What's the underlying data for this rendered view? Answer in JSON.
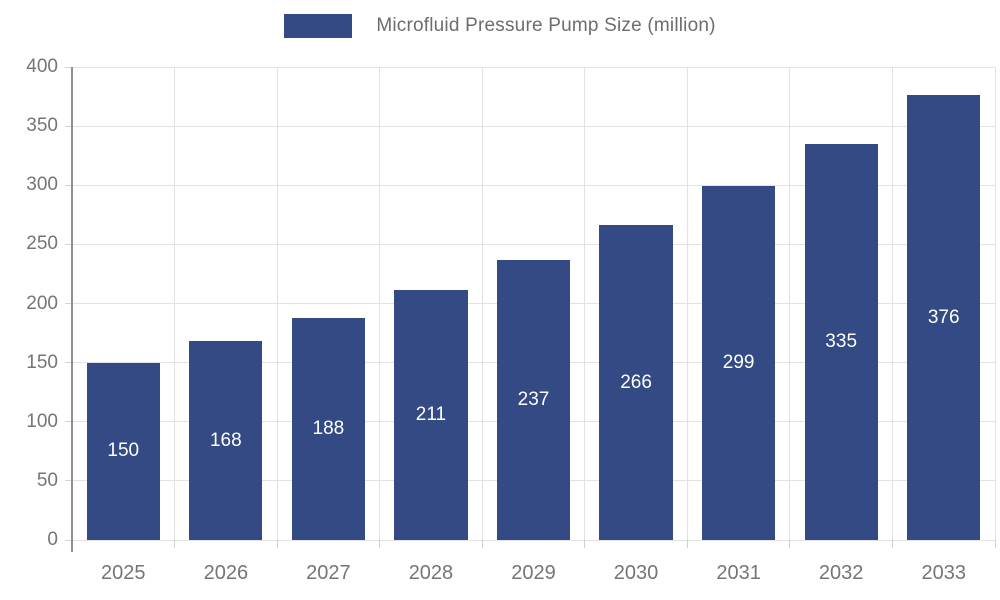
{
  "chart_data": {
    "type": "bar",
    "title": "Microfluid Pressure Pump Size (million)",
    "categories": [
      "2025",
      "2026",
      "2027",
      "2028",
      "2029",
      "2030",
      "2031",
      "2032",
      "2033"
    ],
    "values": [
      150,
      168,
      188,
      211,
      237,
      266,
      299,
      335,
      376
    ],
    "ylim": [
      0,
      400
    ],
    "yticks": [
      0,
      50,
      100,
      150,
      200,
      250,
      300,
      350,
      400
    ],
    "xlabel": "",
    "ylabel": "",
    "legend_position": "top-center",
    "grid": "both",
    "bar_labels_inside": true,
    "colors": {
      "bar": "#344a85",
      "bar_label": "#ffffff",
      "axis_text": "#757575",
      "title_text": "#6d6d6d",
      "grid": "#e2e2e2",
      "axis_line": "#8f8f8f",
      "background": "#ffffff"
    }
  }
}
